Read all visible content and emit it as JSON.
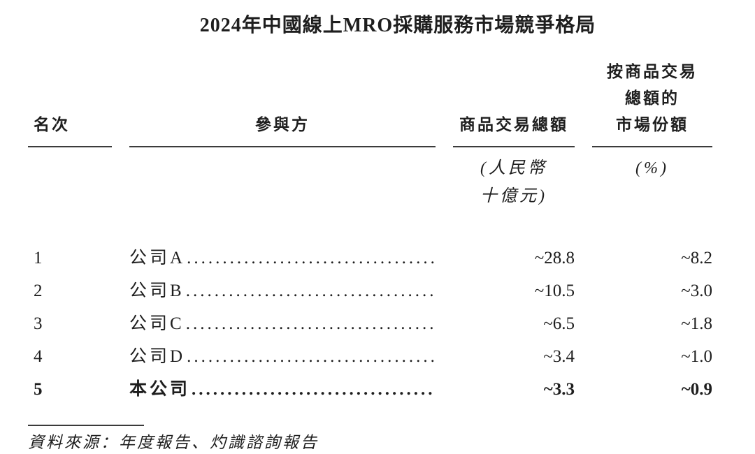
{
  "title": "2024年中國線上MRO採購服務市場競爭格局",
  "table": {
    "columns": {
      "rank": "名次",
      "participant": "參與方",
      "gmv": "商品交易總額",
      "share_line1": "按商品交易",
      "share_line2": "總額的",
      "share_line3": "市場份額"
    },
    "units": {
      "gmv_line1": "(人民幣",
      "gmv_line2": "十億元)",
      "share": "(%)"
    },
    "rows": [
      {
        "rank": "1",
        "participant": "公司A",
        "gmv": "~28.8",
        "share": "~8.2"
      },
      {
        "rank": "2",
        "participant": "公司B",
        "gmv": "~10.5",
        "share": "~3.0"
      },
      {
        "rank": "3",
        "participant": "公司C",
        "gmv": "~6.5",
        "share": "~1.8"
      },
      {
        "rank": "4",
        "participant": "公司D",
        "gmv": "~3.4",
        "share": "~1.0"
      },
      {
        "rank": "5",
        "participant": "本公司",
        "gmv": "~3.3",
        "share": "~0.9"
      }
    ]
  },
  "footer": {
    "source": "資料來源：年度報告、灼識諮詢報告"
  },
  "colors": {
    "ink": "#1e1e1e",
    "rule": "#3b3b3b",
    "background": "#ffffff"
  }
}
